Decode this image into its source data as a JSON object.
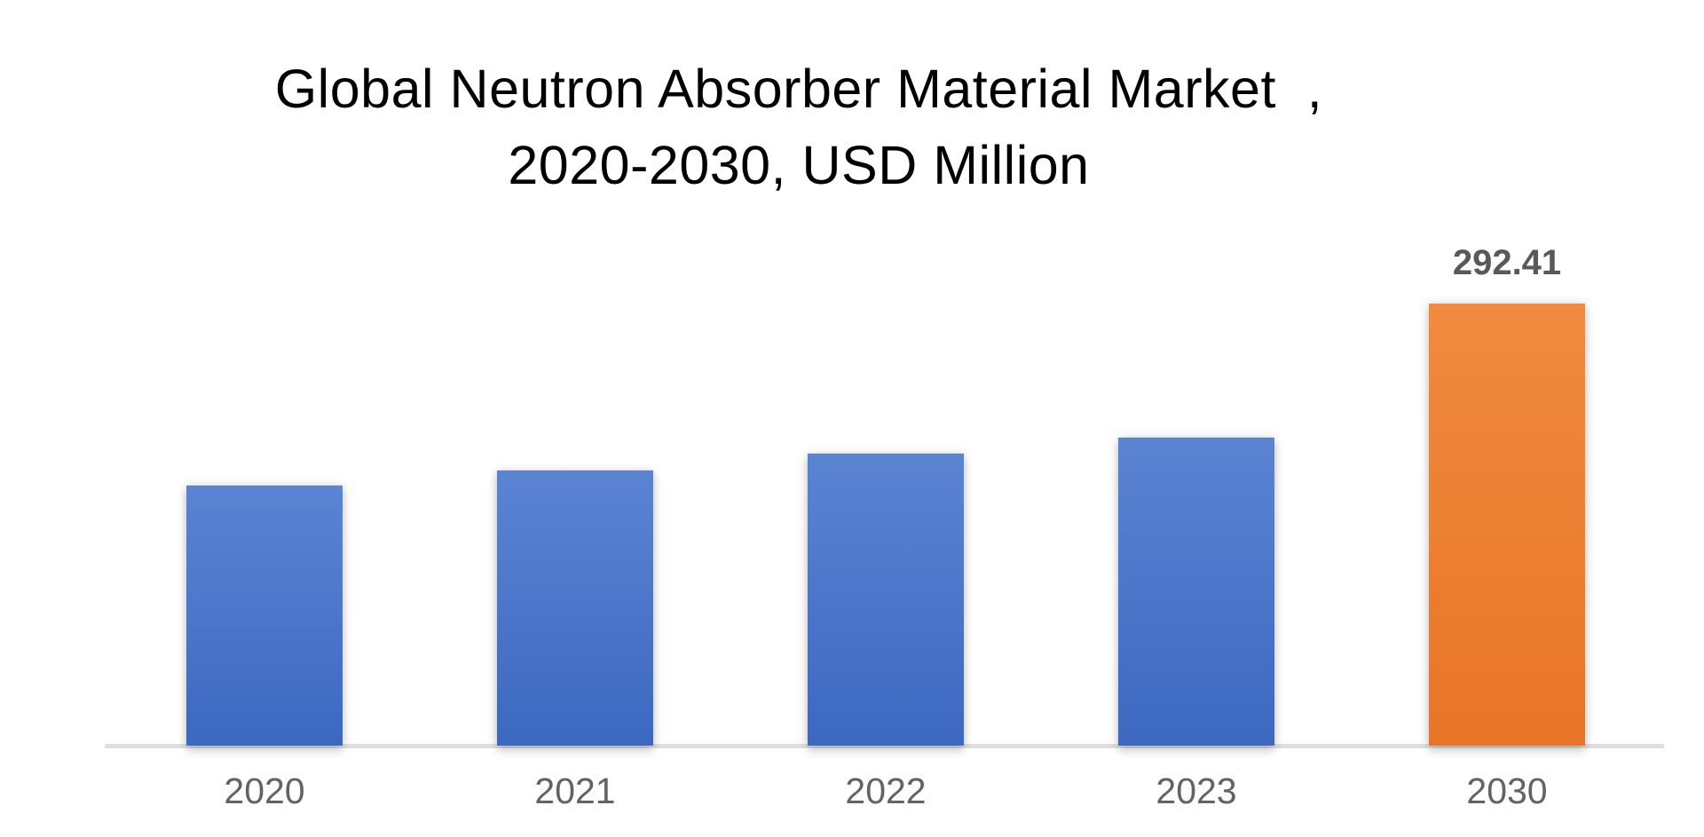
{
  "title": {
    "lines": [
      "Global Neutron Absorber Material Market  ,",
      "2020-2030, USD Million"
    ],
    "full": "Global Neutron Absorber Material Market , 2020-2030, USD Million"
  },
  "chart_data": {
    "type": "bar",
    "title": "Global Neutron Absorber Material Market , 2020-2030, USD Million",
    "categories": [
      "2020",
      "2021",
      "2022",
      "2023",
      "2030"
    ],
    "values": [
      172,
      182,
      193,
      204,
      292.41
    ],
    "data_labels": [
      "",
      "",
      "",
      "",
      "292.41"
    ],
    "unit": "USD Million",
    "ylim": [
      0,
      310
    ],
    "grid": false,
    "legend": false,
    "bar_color_names": [
      "blue",
      "blue",
      "blue",
      "blue",
      "orange"
    ]
  },
  "colors": {
    "background": "#ffffff",
    "title_text": "#000000",
    "blue_bar": "#4a75c8",
    "blue_bar_top": "#5b84d3",
    "blue_bar_bottom": "#3c68c0",
    "orange_bar": "#ed7d31",
    "orange_bar_top": "#f08b3f",
    "orange_bar_bottom": "#e87527",
    "axis_line": "#dfdfdf",
    "axis_label_text": "#636363",
    "data_label_text": "#595959"
  }
}
